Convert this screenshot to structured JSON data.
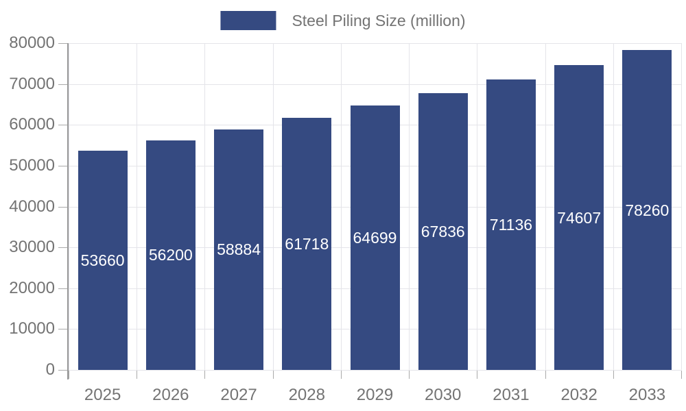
{
  "chart_data": {
    "type": "bar",
    "title": "Steel Piling Size (million)",
    "legend_entries": [
      "Steel Piling Size (million)"
    ],
    "legend_position": "top-center",
    "categories": [
      "2025",
      "2026",
      "2027",
      "2028",
      "2029",
      "2030",
      "2031",
      "2032",
      "2033"
    ],
    "series": [
      {
        "name": "Steel Piling Size (million)",
        "values": [
          53660,
          56200,
          58884,
          61718,
          64699,
          67836,
          71136,
          74607,
          78260
        ]
      }
    ],
    "value_labels": [
      "53660",
      "56200",
      "58884",
      "61718",
      "64699",
      "67836",
      "71136",
      "74607",
      "78260"
    ],
    "xlabel": "",
    "ylabel": "",
    "ylim": [
      0,
      80000
    ],
    "ytick_step": 10000,
    "ytick_labels": [
      "0",
      "10000",
      "20000",
      "30000",
      "40000",
      "50000",
      "60000",
      "70000",
      "80000"
    ],
    "grid": true,
    "colors": {
      "bar": "#354A81",
      "bar_value_text": "#ffffff",
      "axis_text": "#737373",
      "gridline": "#E4E4E9",
      "axis_line": "#999999",
      "tick": "#AAAAAA"
    }
  }
}
